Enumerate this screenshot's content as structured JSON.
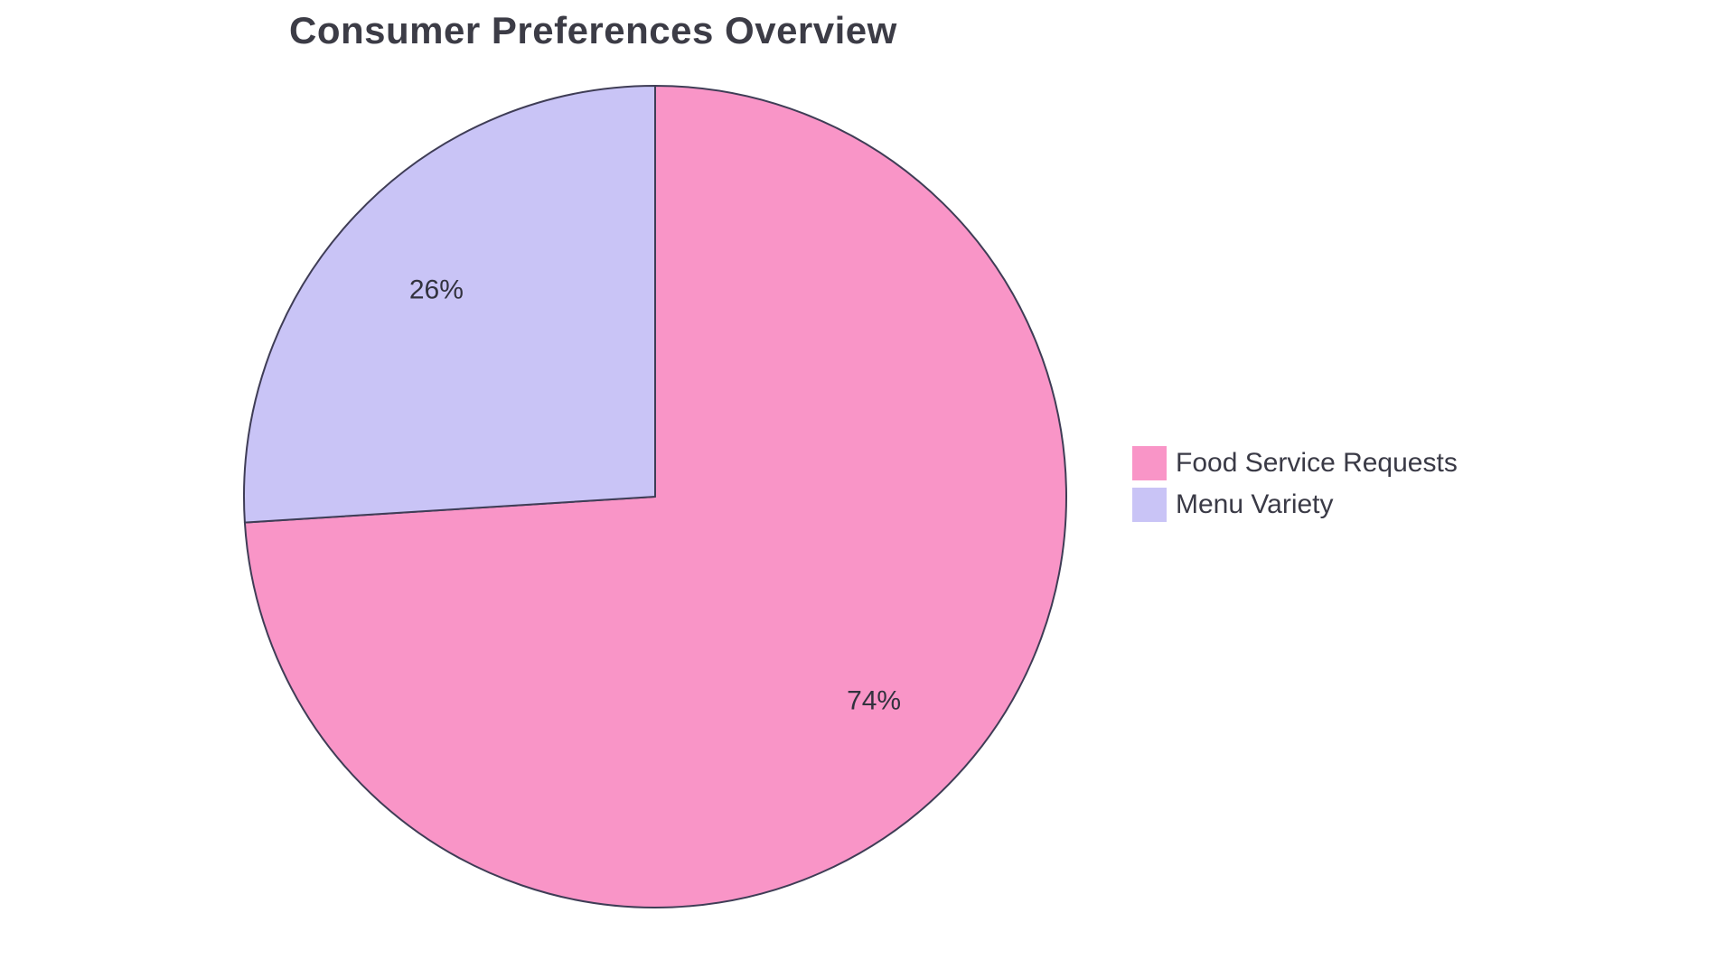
{
  "title": "Consumer Preferences Overview",
  "chart_data": {
    "type": "pie",
    "title": "Consumer Preferences Overview",
    "labels": [
      "Food Service Requests",
      "Menu Variety"
    ],
    "values": [
      74,
      26
    ],
    "percent_labels": [
      "74%",
      "26%"
    ],
    "colors": [
      "#F995C7",
      "#C9C4F6"
    ],
    "border_color": "#3F3D56",
    "start_angle_deg": 0,
    "direction": "clockwise",
    "legend_position": "right",
    "background": "#FFFFFF"
  }
}
